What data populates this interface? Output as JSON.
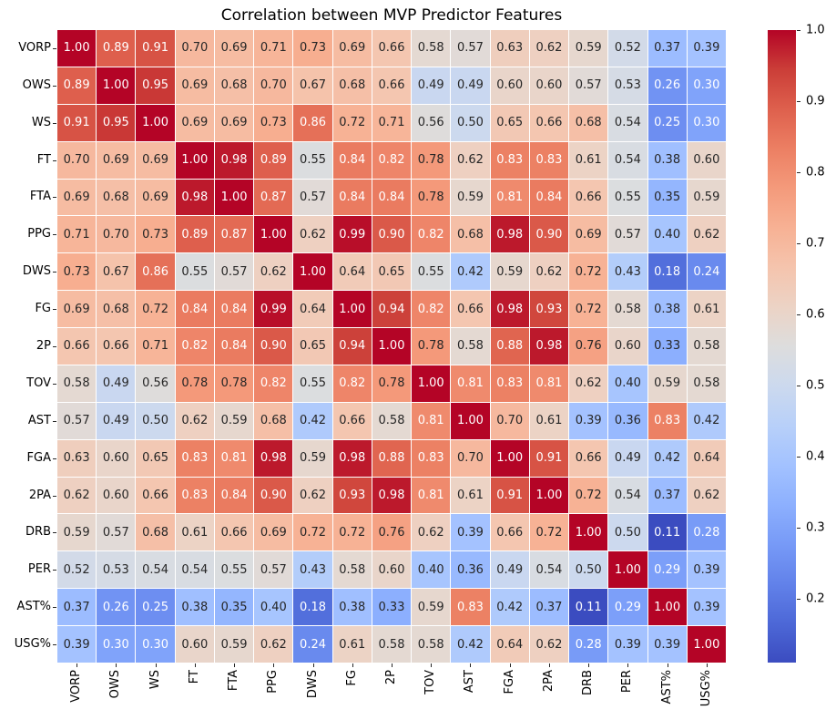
{
  "chart_data": {
    "type": "heatmap",
    "title": "Correlation between MVP Predictor Features",
    "colormap": "coolwarm",
    "vmin": 0.11,
    "vmax": 1.0,
    "annotation_format": ".2f",
    "grid": false,
    "legend_position": "colorbar-right",
    "colorbar_ticks": [
      1.0,
      0.9,
      0.8,
      0.7,
      0.6,
      0.5,
      0.4,
      0.3,
      0.2
    ],
    "colors": {
      "background": "#ffffff",
      "grid_line": "#ffffff",
      "annotation_dark": "#262626",
      "annotation_light": "#ffffff",
      "cmap_low": "#3b4cc0",
      "cmap_mid": "#dddddd",
      "cmap_high": "#b40426"
    },
    "categories": [
      "VORP",
      "OWS",
      "WS",
      "FT",
      "FTA",
      "PPG",
      "DWS",
      "FG",
      "2P",
      "TOV",
      "AST",
      "FGA",
      "2PA",
      "DRB",
      "PER",
      "AST%",
      "USG%"
    ],
    "matrix": [
      [
        1.0,
        0.89,
        0.91,
        0.7,
        0.69,
        0.71,
        0.73,
        0.69,
        0.66,
        0.58,
        0.57,
        0.63,
        0.62,
        0.59,
        0.52,
        0.37,
        0.39
      ],
      [
        0.89,
        1.0,
        0.95,
        0.69,
        0.68,
        0.7,
        0.67,
        0.68,
        0.66,
        0.49,
        0.49,
        0.6,
        0.6,
        0.57,
        0.53,
        0.26,
        0.3
      ],
      [
        0.91,
        0.95,
        1.0,
        0.69,
        0.69,
        0.73,
        0.86,
        0.72,
        0.71,
        0.56,
        0.5,
        0.65,
        0.66,
        0.68,
        0.54,
        0.25,
        0.3
      ],
      [
        0.7,
        0.69,
        0.69,
        1.0,
        0.98,
        0.89,
        0.55,
        0.84,
        0.82,
        0.78,
        0.62,
        0.83,
        0.83,
        0.61,
        0.54,
        0.38,
        0.6
      ],
      [
        0.69,
        0.68,
        0.69,
        0.98,
        1.0,
        0.87,
        0.57,
        0.84,
        0.84,
        0.78,
        0.59,
        0.81,
        0.84,
        0.66,
        0.55,
        0.35,
        0.59
      ],
      [
        0.71,
        0.7,
        0.73,
        0.89,
        0.87,
        1.0,
        0.62,
        0.99,
        0.9,
        0.82,
        0.68,
        0.98,
        0.9,
        0.69,
        0.57,
        0.4,
        0.62
      ],
      [
        0.73,
        0.67,
        0.86,
        0.55,
        0.57,
        0.62,
        1.0,
        0.64,
        0.65,
        0.55,
        0.42,
        0.59,
        0.62,
        0.72,
        0.43,
        0.18,
        0.24
      ],
      [
        0.69,
        0.68,
        0.72,
        0.84,
        0.84,
        0.99,
        0.64,
        1.0,
        0.94,
        0.82,
        0.66,
        0.98,
        0.93,
        0.72,
        0.58,
        0.38,
        0.61
      ],
      [
        0.66,
        0.66,
        0.71,
        0.82,
        0.84,
        0.9,
        0.65,
        0.94,
        1.0,
        0.78,
        0.58,
        0.88,
        0.98,
        0.76,
        0.6,
        0.33,
        0.58
      ],
      [
        0.58,
        0.49,
        0.56,
        0.78,
        0.78,
        0.82,
        0.55,
        0.82,
        0.78,
        1.0,
        0.81,
        0.83,
        0.81,
        0.62,
        0.4,
        0.59,
        0.58
      ],
      [
        0.57,
        0.49,
        0.5,
        0.62,
        0.59,
        0.68,
        0.42,
        0.66,
        0.58,
        0.81,
        1.0,
        0.7,
        0.61,
        0.39,
        0.36,
        0.83,
        0.42
      ],
      [
        0.63,
        0.6,
        0.65,
        0.83,
        0.81,
        0.98,
        0.59,
        0.98,
        0.88,
        0.83,
        0.7,
        1.0,
        0.91,
        0.66,
        0.49,
        0.42,
        0.64
      ],
      [
        0.62,
        0.6,
        0.66,
        0.83,
        0.84,
        0.9,
        0.62,
        0.93,
        0.98,
        0.81,
        0.61,
        0.91,
        1.0,
        0.72,
        0.54,
        0.37,
        0.62
      ],
      [
        0.59,
        0.57,
        0.68,
        0.61,
        0.66,
        0.69,
        0.72,
        0.72,
        0.76,
        0.62,
        0.39,
        0.66,
        0.72,
        1.0,
        0.5,
        0.11,
        0.28
      ],
      [
        0.52,
        0.53,
        0.54,
        0.54,
        0.55,
        0.57,
        0.43,
        0.58,
        0.6,
        0.4,
        0.36,
        0.49,
        0.54,
        0.5,
        1.0,
        0.29,
        0.39
      ],
      [
        0.37,
        0.26,
        0.25,
        0.38,
        0.35,
        0.4,
        0.18,
        0.38,
        0.33,
        0.59,
        0.83,
        0.42,
        0.37,
        0.11,
        0.29,
        1.0,
        0.39
      ],
      [
        0.39,
        0.3,
        0.3,
        0.6,
        0.59,
        0.62,
        0.24,
        0.61,
        0.58,
        0.58,
        0.42,
        0.64,
        0.62,
        0.28,
        0.39,
        0.39,
        1.0
      ]
    ]
  }
}
